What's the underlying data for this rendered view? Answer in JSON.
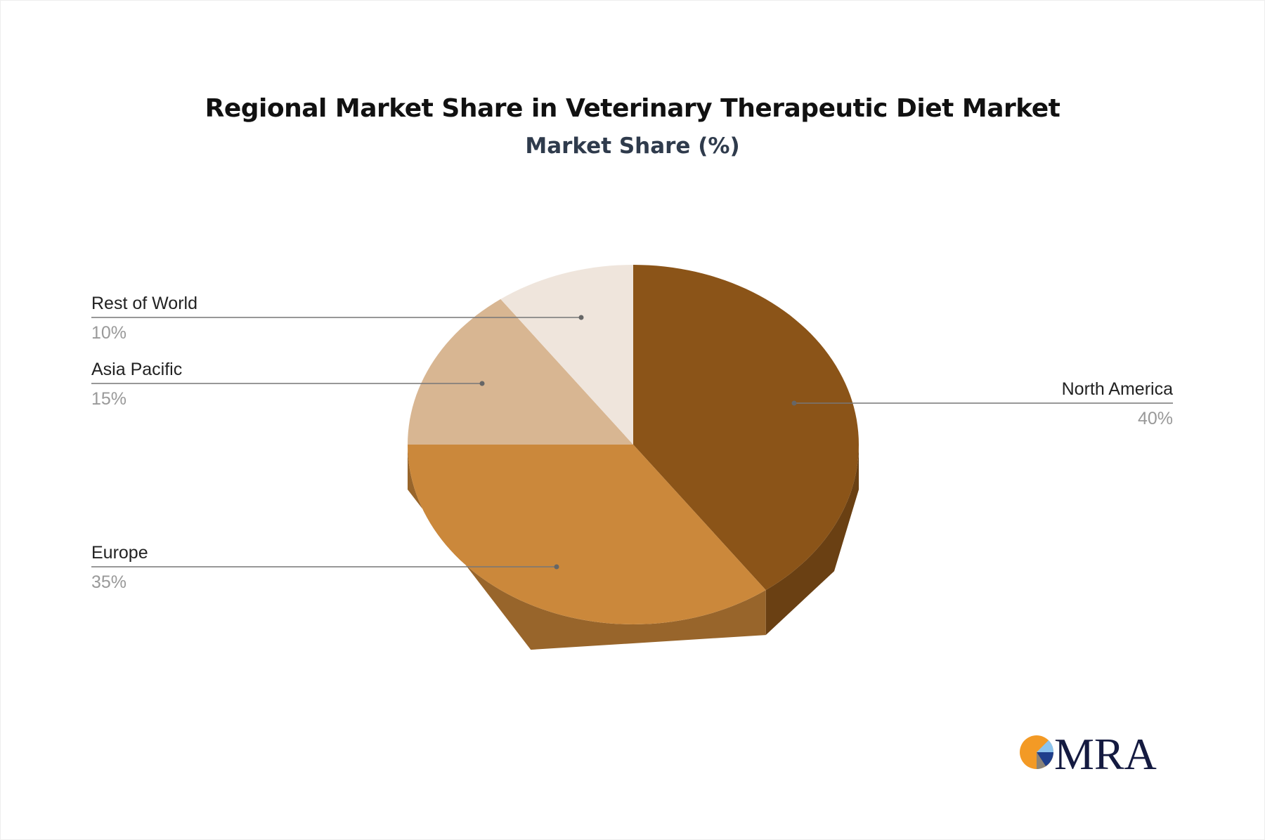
{
  "chart_data": {
    "type": "pie",
    "style": "3d",
    "title": "Regional Market Share in Veterinary Therapeutic Diet Market",
    "subtitle": "Market Share (%)",
    "slices": [
      {
        "label": "North America",
        "value": 40,
        "display": "40%",
        "color": "#8B5418",
        "side_color": "#6A4013"
      },
      {
        "label": "Europe",
        "value": 35,
        "display": "35%",
        "color": "#CB883B",
        "side_color": "#98652B"
      },
      {
        "label": "Asia Pacific",
        "value": 15,
        "display": "15%",
        "color": "#D8B692",
        "side_color": "#B09070"
      },
      {
        "label": "Rest of World",
        "value": 10,
        "display": "10%",
        "color": "#EFE5DC",
        "side_color": "#CFC5BC"
      }
    ]
  },
  "logo": {
    "text": "MRA"
  }
}
